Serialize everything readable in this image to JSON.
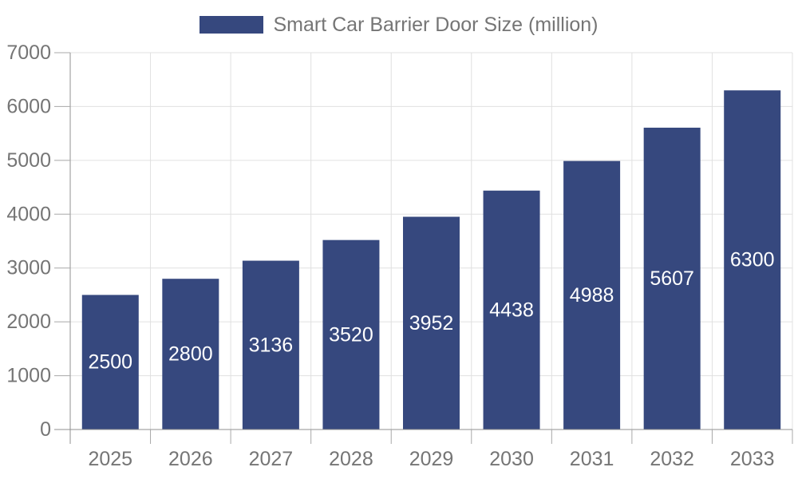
{
  "chart_data": {
    "type": "bar",
    "title": "Smart Car Barrier Door Size (million)",
    "categories": [
      "2025",
      "2026",
      "2027",
      "2028",
      "2029",
      "2030",
      "2031",
      "2032",
      "2033"
    ],
    "series": [
      {
        "name": "Smart Car Barrier Door Size (million)",
        "values": [
          2500,
          2800,
          3136,
          3520,
          3952,
          4438,
          4988,
          5607,
          6300
        ]
      }
    ],
    "xlabel": "",
    "ylabel": "",
    "ylim": [
      0,
      7000
    ],
    "y_ticks": [
      0,
      1000,
      2000,
      3000,
      4000,
      5000,
      6000,
      7000
    ],
    "grid": true,
    "legend_position": "top",
    "value_labels": "inside-center"
  },
  "colors": {
    "bar": "#36487E",
    "grid_line": "#e0e0e0",
    "axis_line": "#909090",
    "tick_line": "#a8a8a8",
    "tick_label": "#757575",
    "legend_text": "#757575",
    "value_label": "#ffffff",
    "background": "#ffffff"
  }
}
